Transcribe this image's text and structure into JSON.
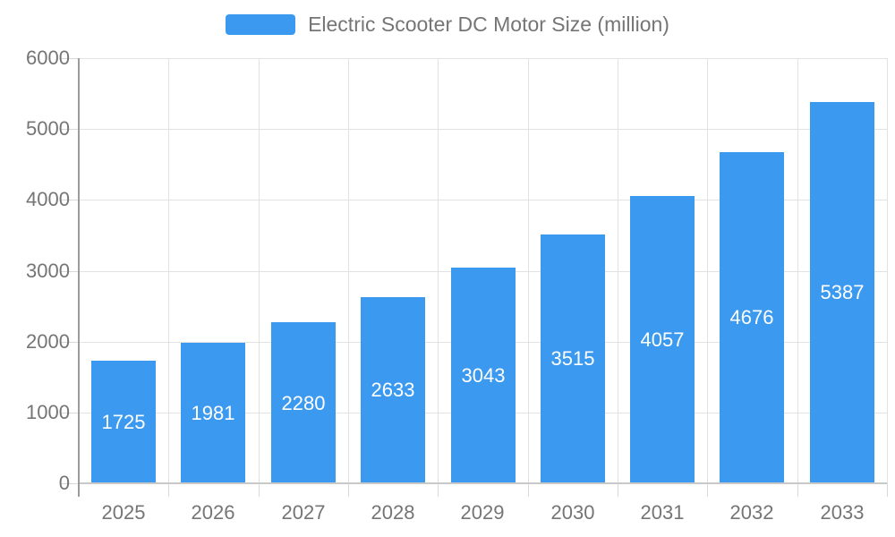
{
  "chart_data": {
    "type": "bar",
    "title": "Electric Scooter DC Motor Size (million)",
    "categories": [
      "2025",
      "2026",
      "2027",
      "2028",
      "2029",
      "2030",
      "2031",
      "2032",
      "2033"
    ],
    "series": [
      {
        "name": "Electric Scooter DC Motor Size (million)",
        "values": [
          1725,
          1981,
          2280,
          2633,
          3043,
          3515,
          4057,
          4676,
          5387
        ]
      }
    ],
    "xlabel": "",
    "ylabel": "",
    "ylim": [
      0,
      6000
    ],
    "yticks": [
      0,
      1000,
      2000,
      3000,
      4000,
      5000,
      6000
    ],
    "grid": true,
    "legend_position": "top-center",
    "value_labels": "inside-center",
    "colors": {
      "bar": "#3B9AF0",
      "grid": "#E2E2E2",
      "axis_y_line": "#9B9B9B",
      "axis_x_line": "#C9C9C9",
      "tick": "#D8D8D8",
      "axis_text": "#757575",
      "value_label": "#FFFFFF",
      "background": "#FFFFFF"
    }
  }
}
